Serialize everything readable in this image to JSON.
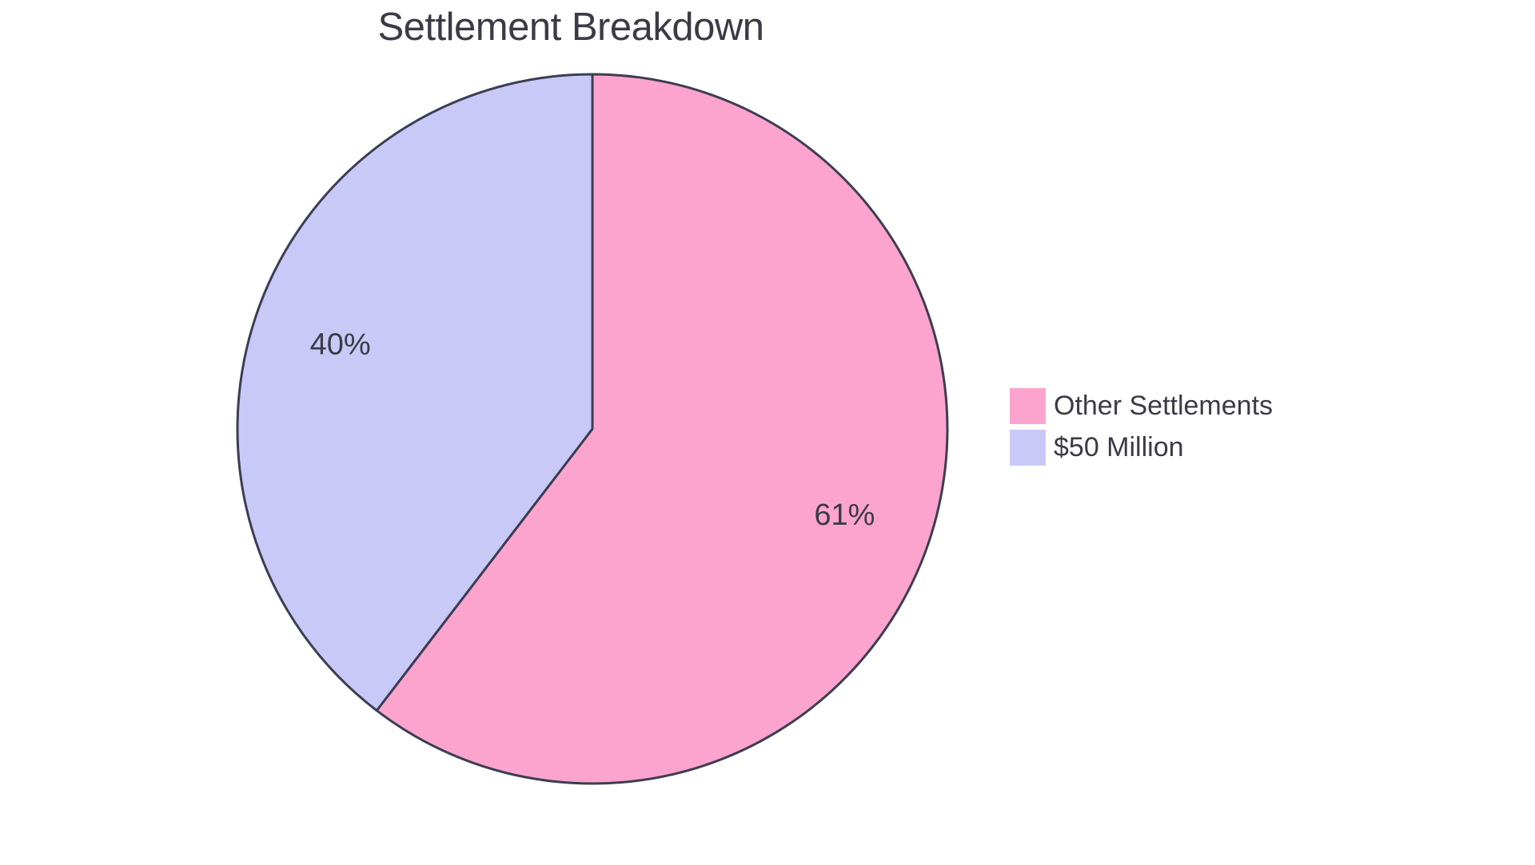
{
  "page": {
    "background_color": "#FFFFFF"
  },
  "chart_data": {
    "type": "pie",
    "title": "Settlement Breakdown",
    "slices": [
      {
        "label": "Other Settlements",
        "value": 61,
        "percent_label": "61%",
        "color": "#FCA4CE"
      },
      {
        "label": "$50 Million",
        "value": 40,
        "percent_label": "40%",
        "color": "#C9C9F8"
      }
    ],
    "outline_color": "#3C3D52",
    "text_color": "#3B3B46",
    "legend_position": "right",
    "start_angle_deg": -90,
    "direction": "clockwise",
    "percent_labels_inside": true
  }
}
